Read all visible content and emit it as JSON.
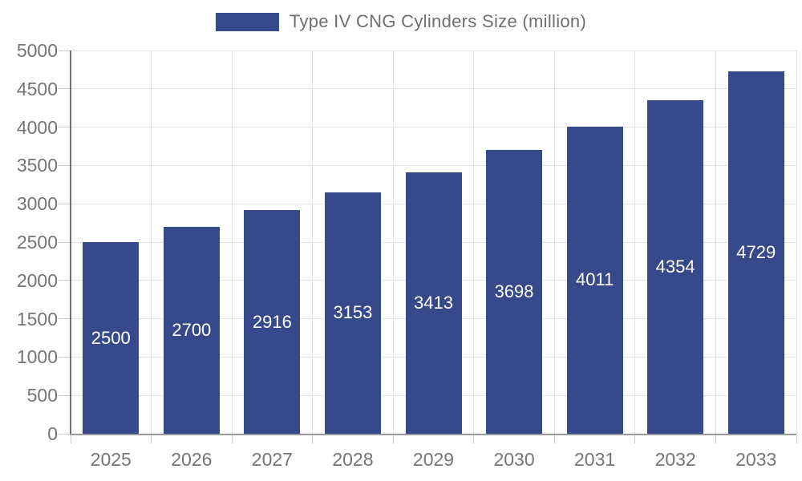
{
  "legend": {
    "label": "Type IV CNG Cylinders Size (million)"
  },
  "chart_data": {
    "type": "bar",
    "title": "",
    "categories": [
      "2025",
      "2026",
      "2027",
      "2028",
      "2029",
      "2030",
      "2031",
      "2032",
      "2033"
    ],
    "series": [
      {
        "name": "Type IV CNG Cylinders Size (million)",
        "values": [
          2500,
          2700,
          2916,
          3153,
          3413,
          3698,
          4011,
          4354,
          4729
        ]
      }
    ],
    "xlabel": "",
    "ylabel": "",
    "ylim": [
      0,
      5000
    ],
    "ytick_step": 500,
    "grid": true,
    "legend_position": "top-center",
    "bar_labels_shown": true,
    "colors": {
      "bar": "#36498A",
      "bar_label": "#FFFFFF",
      "axis_text": "#757575",
      "gridline": "#E4E4E8",
      "y_axis_line": "#6F6F77",
      "x_axis_line": "#9A9AA0",
      "tick": "#C9C9CF",
      "background": "#FFFFFF"
    }
  }
}
